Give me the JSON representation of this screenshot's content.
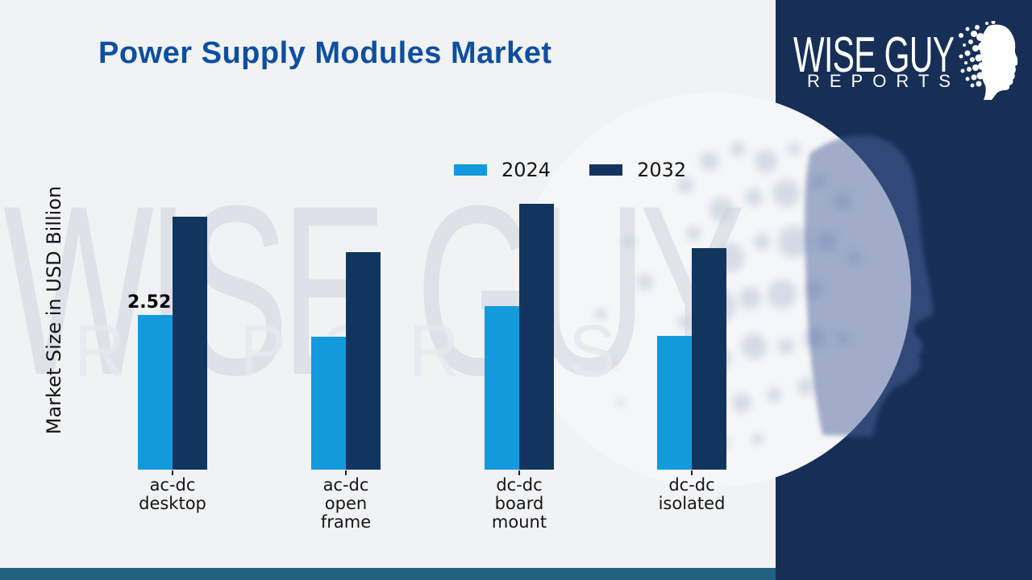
{
  "title": {
    "text": "Power Supply Modules Market",
    "color": "#0d4fa1"
  },
  "y_axis_label": "Market Size in USD Billion",
  "watermark": {
    "line1": "WISE GUY",
    "line2": "REPORTS"
  },
  "brand": {
    "name": "WISE GUY",
    "sub": "REPORTS",
    "panel_color": "#172f57",
    "footer_color": "#21607e",
    "face_icon": "head-profile-dots-icon"
  },
  "legend": {
    "items": [
      {
        "label": "2024",
        "color": "#129add"
      },
      {
        "label": "2032",
        "color": "#12355f"
      }
    ]
  },
  "chart_data": {
    "type": "bar",
    "title": "Power Supply Modules Market",
    "xlabel": "",
    "ylabel": "Market Size in USD Billion",
    "categories": [
      "ac-dc desktop",
      "ac-dc open frame",
      "dc-dc board mount",
      "dc-dc isolated"
    ],
    "series": [
      {
        "name": "2024",
        "color": "#129add",
        "values": [
          2.52,
          2.17,
          2.66,
          2.18
        ]
      },
      {
        "name": "2032",
        "color": "#12355f",
        "values": [
          4.12,
          3.54,
          4.33,
          3.61
        ]
      }
    ],
    "annotations": [
      {
        "series": "2024",
        "category_index": 0,
        "text": "2.52"
      }
    ],
    "ylim": [
      0,
      4.8
    ],
    "grid": false,
    "legend_position": "top-center",
    "y_axis_ticks_visible": false
  }
}
